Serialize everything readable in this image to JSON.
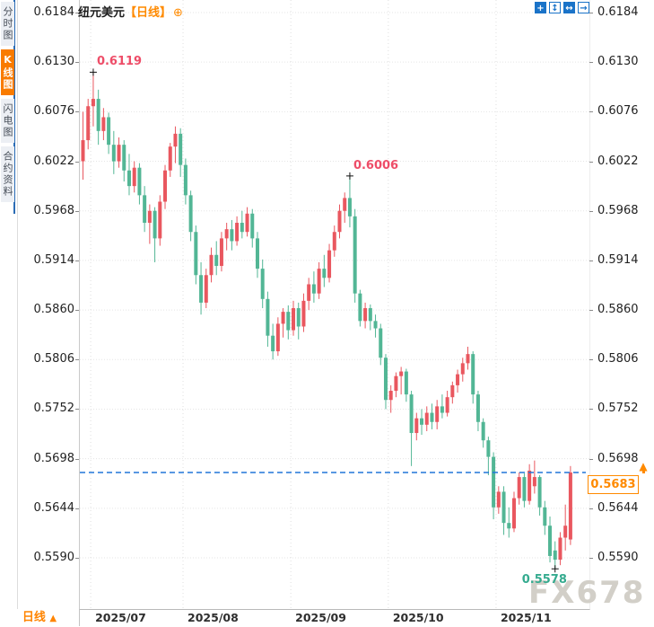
{
  "sidebar": {
    "tabs": [
      {
        "label": "分时图",
        "active": false
      },
      {
        "label": "K线图",
        "active": true
      },
      {
        "label": "闪电图",
        "active": false
      },
      {
        "label": "合约资料",
        "active": false
      }
    ]
  },
  "header": {
    "symbol": "纽元美元",
    "period_tag": "【日线】",
    "add_icon": "⊕"
  },
  "toolbar": {
    "icons": [
      {
        "name": "pan",
        "glyph": "+"
      },
      {
        "name": "vertical-scale",
        "glyph": "↕"
      },
      {
        "name": "horizontal-scale",
        "glyph": "↔"
      },
      {
        "name": "scroll-right",
        "glyph": "→"
      }
    ]
  },
  "bottom_bar": {
    "period_label": "日线",
    "up_arrow": "▲"
  },
  "watermark": "FX678",
  "price_box": {
    "value": "0.5683",
    "arrow": "▲"
  },
  "chart_data": {
    "type": "candlestick",
    "title": "纽元美元 日线",
    "y_axis": {
      "max": 0.6184,
      "min": 0.559,
      "ticks": [
        0.6184,
        0.613,
        0.6076,
        0.6022,
        0.5968,
        0.5914,
        0.586,
        0.5806,
        0.5752,
        0.5698,
        0.5644,
        0.559
      ]
    },
    "x_axis": {
      "months": [
        {
          "label": "2025/07",
          "index": 2
        },
        {
          "label": "2025/08",
          "index": 20
        },
        {
          "label": "2025/09",
          "index": 41
        },
        {
          "label": "2025/10",
          "index": 60
        },
        {
          "label": "2025/11",
          "index": 81
        }
      ]
    },
    "colors": {
      "up": "#e9575f",
      "down": "#52b695",
      "high_label": "#ee4d68",
      "low_label": "#35ab8f",
      "price_line": "#2176d9"
    },
    "current_price": 0.5683,
    "annotations": [
      {
        "index": 2,
        "price": 0.6119,
        "label": "0.6119",
        "kind": "high",
        "placement": "above-right"
      },
      {
        "index": 52,
        "price": 0.6006,
        "label": "0.6006",
        "kind": "high",
        "placement": "above-right"
      },
      {
        "index": 92,
        "price": 0.5578,
        "label": "0.5578",
        "kind": "low",
        "placement": "below"
      }
    ],
    "candles": [
      [
        0.6022,
        0.6076,
        0.6002,
        0.6045
      ],
      [
        0.6045,
        0.609,
        0.6035,
        0.6082
      ],
      [
        0.6082,
        0.6119,
        0.606,
        0.609
      ],
      [
        0.609,
        0.61,
        0.604,
        0.6055
      ],
      [
        0.6055,
        0.608,
        0.6045,
        0.607
      ],
      [
        0.607,
        0.6075,
        0.603,
        0.604
      ],
      [
        0.604,
        0.6055,
        0.6008,
        0.6022
      ],
      [
        0.6022,
        0.6048,
        0.6015,
        0.604
      ],
      [
        0.604,
        0.6045,
        0.6,
        0.6012
      ],
      [
        0.6012,
        0.603,
        0.5985,
        0.5995
      ],
      [
        0.5995,
        0.6022,
        0.5988,
        0.6015
      ],
      [
        0.6015,
        0.602,
        0.5975,
        0.5985
      ],
      [
        0.5985,
        0.5995,
        0.5945,
        0.5955
      ],
      [
        0.5955,
        0.5975,
        0.5932,
        0.5968
      ],
      [
        0.5968,
        0.5972,
        0.5912,
        0.5938
      ],
      [
        0.5938,
        0.5985,
        0.593,
        0.5978
      ],
      [
        0.5978,
        0.6018,
        0.597,
        0.6012
      ],
      [
        0.6012,
        0.6042,
        0.6005,
        0.6038
      ],
      [
        0.6038,
        0.606,
        0.602,
        0.6052
      ],
      [
        0.6052,
        0.6058,
        0.6005,
        0.6018
      ],
      [
        0.6018,
        0.6025,
        0.5975,
        0.5985
      ],
      [
        0.5985,
        0.599,
        0.5935,
        0.5945
      ],
      [
        0.5945,
        0.5952,
        0.5888,
        0.5898
      ],
      [
        0.5898,
        0.5912,
        0.5855,
        0.5868
      ],
      [
        0.5868,
        0.5905,
        0.5862,
        0.5898
      ],
      [
        0.5898,
        0.5928,
        0.589,
        0.592
      ],
      [
        0.592,
        0.5935,
        0.5898,
        0.5908
      ],
      [
        0.5908,
        0.5945,
        0.5902,
        0.5938
      ],
      [
        0.5938,
        0.5955,
        0.5925,
        0.5948
      ],
      [
        0.5948,
        0.5958,
        0.5925,
        0.5935
      ],
      [
        0.5935,
        0.5962,
        0.593,
        0.5955
      ],
      [
        0.5955,
        0.5968,
        0.5938,
        0.5945
      ],
      [
        0.5945,
        0.5972,
        0.594,
        0.5965
      ],
      [
        0.5965,
        0.597,
        0.5928,
        0.5938
      ],
      [
        0.5938,
        0.5945,
        0.5895,
        0.5905
      ],
      [
        0.5905,
        0.5915,
        0.5862,
        0.5872
      ],
      [
        0.5872,
        0.588,
        0.582,
        0.5832
      ],
      [
        0.5832,
        0.5845,
        0.5806,
        0.5815
      ],
      [
        0.5815,
        0.5852,
        0.581,
        0.5845
      ],
      [
        0.5845,
        0.5862,
        0.583,
        0.5858
      ],
      [
        0.5858,
        0.5865,
        0.5828,
        0.5838
      ],
      [
        0.5838,
        0.587,
        0.5832,
        0.5862
      ],
      [
        0.5862,
        0.5868,
        0.5828,
        0.5842
      ],
      [
        0.5842,
        0.5878,
        0.5836,
        0.587
      ],
      [
        0.587,
        0.5895,
        0.586,
        0.5888
      ],
      [
        0.5888,
        0.5902,
        0.5868,
        0.5878
      ],
      [
        0.5878,
        0.5912,
        0.5872,
        0.5905
      ],
      [
        0.5905,
        0.592,
        0.5885,
        0.5895
      ],
      [
        0.5895,
        0.5932,
        0.589,
        0.5925
      ],
      [
        0.5925,
        0.5952,
        0.5918,
        0.5945
      ],
      [
        0.5945,
        0.5975,
        0.5938,
        0.5968
      ],
      [
        0.5968,
        0.5988,
        0.5955,
        0.5982
      ],
      [
        0.5982,
        0.6006,
        0.595,
        0.5962
      ],
      [
        0.5962,
        0.597,
        0.5868,
        0.5878
      ],
      [
        0.5878,
        0.5882,
        0.5842,
        0.5848
      ],
      [
        0.5848,
        0.5868,
        0.584,
        0.5862
      ],
      [
        0.5862,
        0.5866,
        0.5838,
        0.5848
      ],
      [
        0.5848,
        0.5855,
        0.583,
        0.584
      ],
      [
        0.584,
        0.5845,
        0.58,
        0.5808
      ],
      [
        0.5808,
        0.5812,
        0.5752,
        0.5762
      ],
      [
        0.5762,
        0.5778,
        0.5748,
        0.5772
      ],
      [
        0.5772,
        0.5792,
        0.5765,
        0.5788
      ],
      [
        0.5788,
        0.5798,
        0.5768,
        0.5793
      ],
      [
        0.5793,
        0.5796,
        0.576,
        0.5768
      ],
      [
        0.5768,
        0.5772,
        0.569,
        0.5726
      ],
      [
        0.5726,
        0.5748,
        0.5718,
        0.5742
      ],
      [
        0.5742,
        0.5752,
        0.5724,
        0.5735
      ],
      [
        0.5735,
        0.5755,
        0.5728,
        0.5748
      ],
      [
        0.5748,
        0.5758,
        0.573,
        0.5738
      ],
      [
        0.5738,
        0.5762,
        0.573,
        0.5755
      ],
      [
        0.5755,
        0.5768,
        0.5742,
        0.5748
      ],
      [
        0.5748,
        0.5772,
        0.5744,
        0.5765
      ],
      [
        0.5765,
        0.5782,
        0.5758,
        0.5778
      ],
      [
        0.5778,
        0.5795,
        0.577,
        0.579
      ],
      [
        0.579,
        0.5808,
        0.5782,
        0.5802
      ],
      [
        0.5802,
        0.582,
        0.5795,
        0.5812
      ],
      [
        0.5812,
        0.5815,
        0.5758,
        0.5768
      ],
      [
        0.5768,
        0.5772,
        0.5728,
        0.5738
      ],
      [
        0.5738,
        0.5742,
        0.571,
        0.5718
      ],
      [
        0.5718,
        0.5722,
        0.568,
        0.57
      ],
      [
        0.57,
        0.5705,
        0.5632,
        0.5645
      ],
      [
        0.5645,
        0.5668,
        0.5638,
        0.5662
      ],
      [
        0.5662,
        0.5668,
        0.5615,
        0.5628
      ],
      [
        0.5628,
        0.5645,
        0.5612,
        0.5622
      ],
      [
        0.5622,
        0.5662,
        0.5618,
        0.5655
      ],
      [
        0.5655,
        0.5683,
        0.5648,
        0.5678
      ],
      [
        0.5678,
        0.5682,
        0.5645,
        0.5652
      ],
      [
        0.5652,
        0.5692,
        0.5648,
        0.5685
      ],
      [
        0.5668,
        0.5696,
        0.566,
        0.5678
      ],
      [
        0.5678,
        0.568,
        0.5636,
        0.5645
      ],
      [
        0.5645,
        0.5652,
        0.5615,
        0.5625
      ],
      [
        0.5625,
        0.5635,
        0.5585,
        0.5592
      ],
      [
        0.5598,
        0.5608,
        0.5578,
        0.5588
      ],
      [
        0.5588,
        0.5618,
        0.5582,
        0.5612
      ],
      [
        0.5612,
        0.5648,
        0.5598,
        0.5625
      ],
      [
        0.561,
        0.569,
        0.5604,
        0.5683
      ]
    ]
  }
}
